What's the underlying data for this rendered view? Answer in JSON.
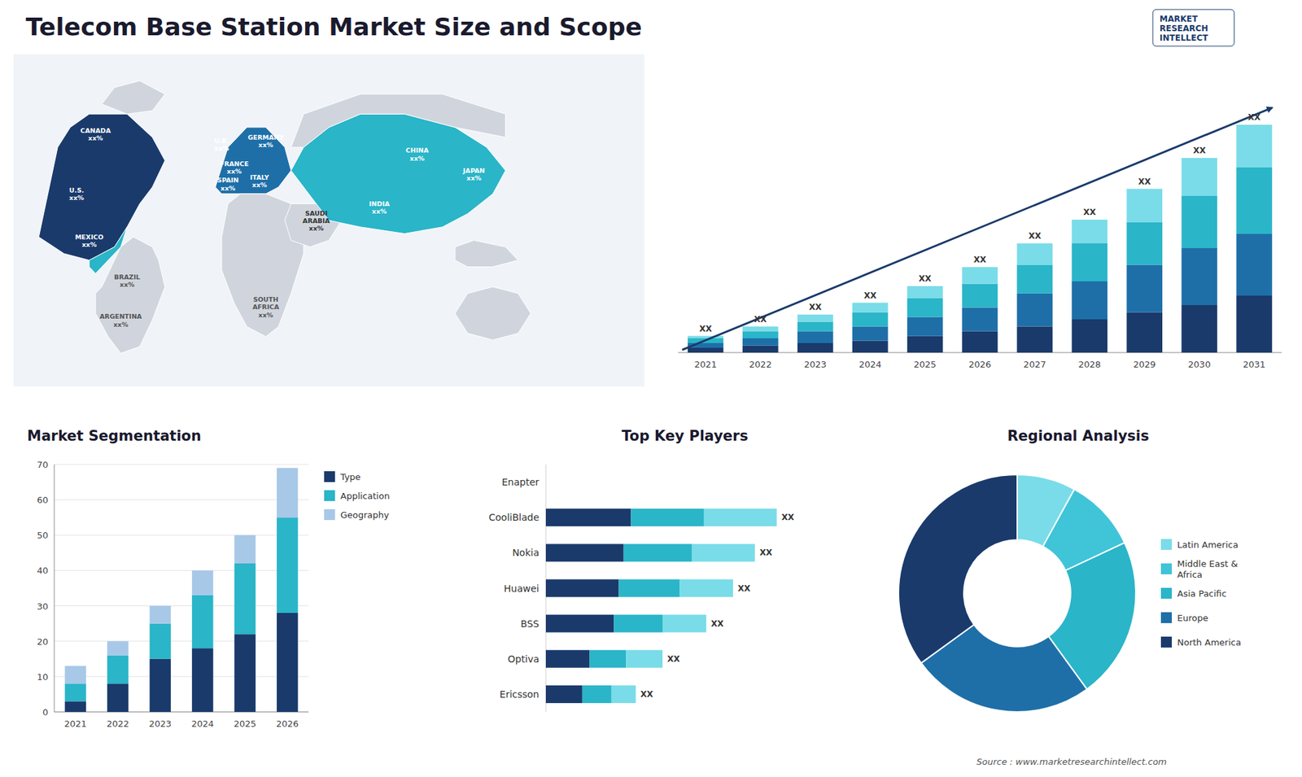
{
  "chart_data": [
    {
      "type": "map",
      "title": "Telecom Base Station Market Size and Scope",
      "annotations": [
        "CANADA\nxx%",
        "U.S.\nxx%",
        "MEXICO\nxx%",
        "BRAZIL\nxx%",
        "ARGENTINA\nxx%",
        "U.K.\nxx%",
        "FRANCE\nxx%",
        "SPAIN\nxx%",
        "GERMANY\nxx%",
        "ITALY\nxx%",
        "SAUDI\nARABIA\nxx%",
        "SOUTH\nAFRICA\nxx%",
        "CHINA\nxx%",
        "INDIA\nxx%",
        "JAPAN\nxx%",
        "MARKET\nRESEARCH\nINTELLECT",
        "Source : www.marketresearchintellect.com"
      ]
    },
    {
      "type": "bar",
      "stacked": true,
      "categories": [
        "2021",
        "2022",
        "2023",
        "2024",
        "2025",
        "2026",
        "2027",
        "2028",
        "2029",
        "2030",
        "2031"
      ],
      "series": [
        {
          "color": "#1a3a6b",
          "values": [
            1,
            1.5,
            2,
            2.5,
            3.5,
            4.5,
            5.5,
            7,
            8.5,
            10,
            12
          ]
        },
        {
          "color": "#1e6fa8",
          "values": [
            1,
            1.5,
            2.5,
            3,
            4,
            5,
            7,
            8,
            10,
            12,
            13
          ]
        },
        {
          "color": "#2ab5c8",
          "values": [
            1,
            1.5,
            2,
            3,
            4,
            5,
            6,
            8,
            9,
            11,
            14
          ]
        },
        {
          "color": "#7adce8",
          "values": [
            0.5,
            1,
            1.5,
            2,
            2.5,
            3.5,
            4.5,
            5,
            7,
            8,
            9
          ]
        }
      ],
      "annotations": [
        "XX",
        "XX",
        "XX",
        "XX",
        "XX",
        "XX",
        "XX",
        "XX",
        "XX",
        "XX",
        "XX"
      ],
      "ylim": [
        0,
        60
      ],
      "tick_labels": "x",
      "grid": false
    },
    {
      "type": "bar",
      "title": "Market Segmentation",
      "stacked": true,
      "categories": [
        "2021",
        "2022",
        "2023",
        "2024",
        "2025",
        "2026"
      ],
      "series": [
        {
          "name": "Type",
          "color": "#1a3a6b",
          "values": [
            3,
            8,
            15,
            18,
            22,
            28
          ]
        },
        {
          "name": "Application",
          "color": "#2ab5c8",
          "values": [
            5,
            8,
            10,
            15,
            20,
            27
          ]
        },
        {
          "name": "Geography",
          "color": "#a8c8e8",
          "values": [
            5,
            4,
            5,
            7,
            8,
            14
          ]
        }
      ],
      "ylim": [
        0,
        70
      ],
      "yticks": [
        0,
        10,
        20,
        30,
        40,
        50,
        60,
        70
      ],
      "grid": true,
      "legend": "right"
    },
    {
      "type": "bar",
      "title": "Top Key Players",
      "orientation": "horizontal",
      "stacked": true,
      "categories": [
        "Enapter",
        "CooliBlade",
        "Nokia",
        "Huawei",
        "BSS",
        "Optiva",
        "Ericsson"
      ],
      "series": [
        {
          "color": "#1a3a6b",
          "values": [
            null,
            3.5,
            3.2,
            3.0,
            2.8,
            1.8,
            1.5
          ]
        },
        {
          "color": "#2ab5c8",
          "values": [
            null,
            3.0,
            2.8,
            2.5,
            2.0,
            1.5,
            1.2
          ]
        },
        {
          "color": "#7adce8",
          "values": [
            null,
            3.0,
            2.6,
            2.2,
            1.8,
            1.5,
            1.0
          ]
        }
      ],
      "annotations": [
        "XX",
        "XX",
        "XX",
        "XX",
        "XX",
        "XX"
      ],
      "xlim": [
        0,
        12
      ],
      "tick_labels": "y",
      "grid": false
    },
    {
      "type": "pie",
      "title": "Regional Analysis",
      "categories": [
        "Latin America",
        "Middle East &\nAfrica",
        "Asia Pacific",
        "Europe",
        "North America"
      ],
      "values": [
        8,
        10,
        22,
        25,
        35
      ],
      "colors": [
        "#7adce8",
        "#40c4d8",
        "#2ab5c8",
        "#1e6fa8",
        "#1a3a6b"
      ],
      "legend": "right"
    }
  ]
}
